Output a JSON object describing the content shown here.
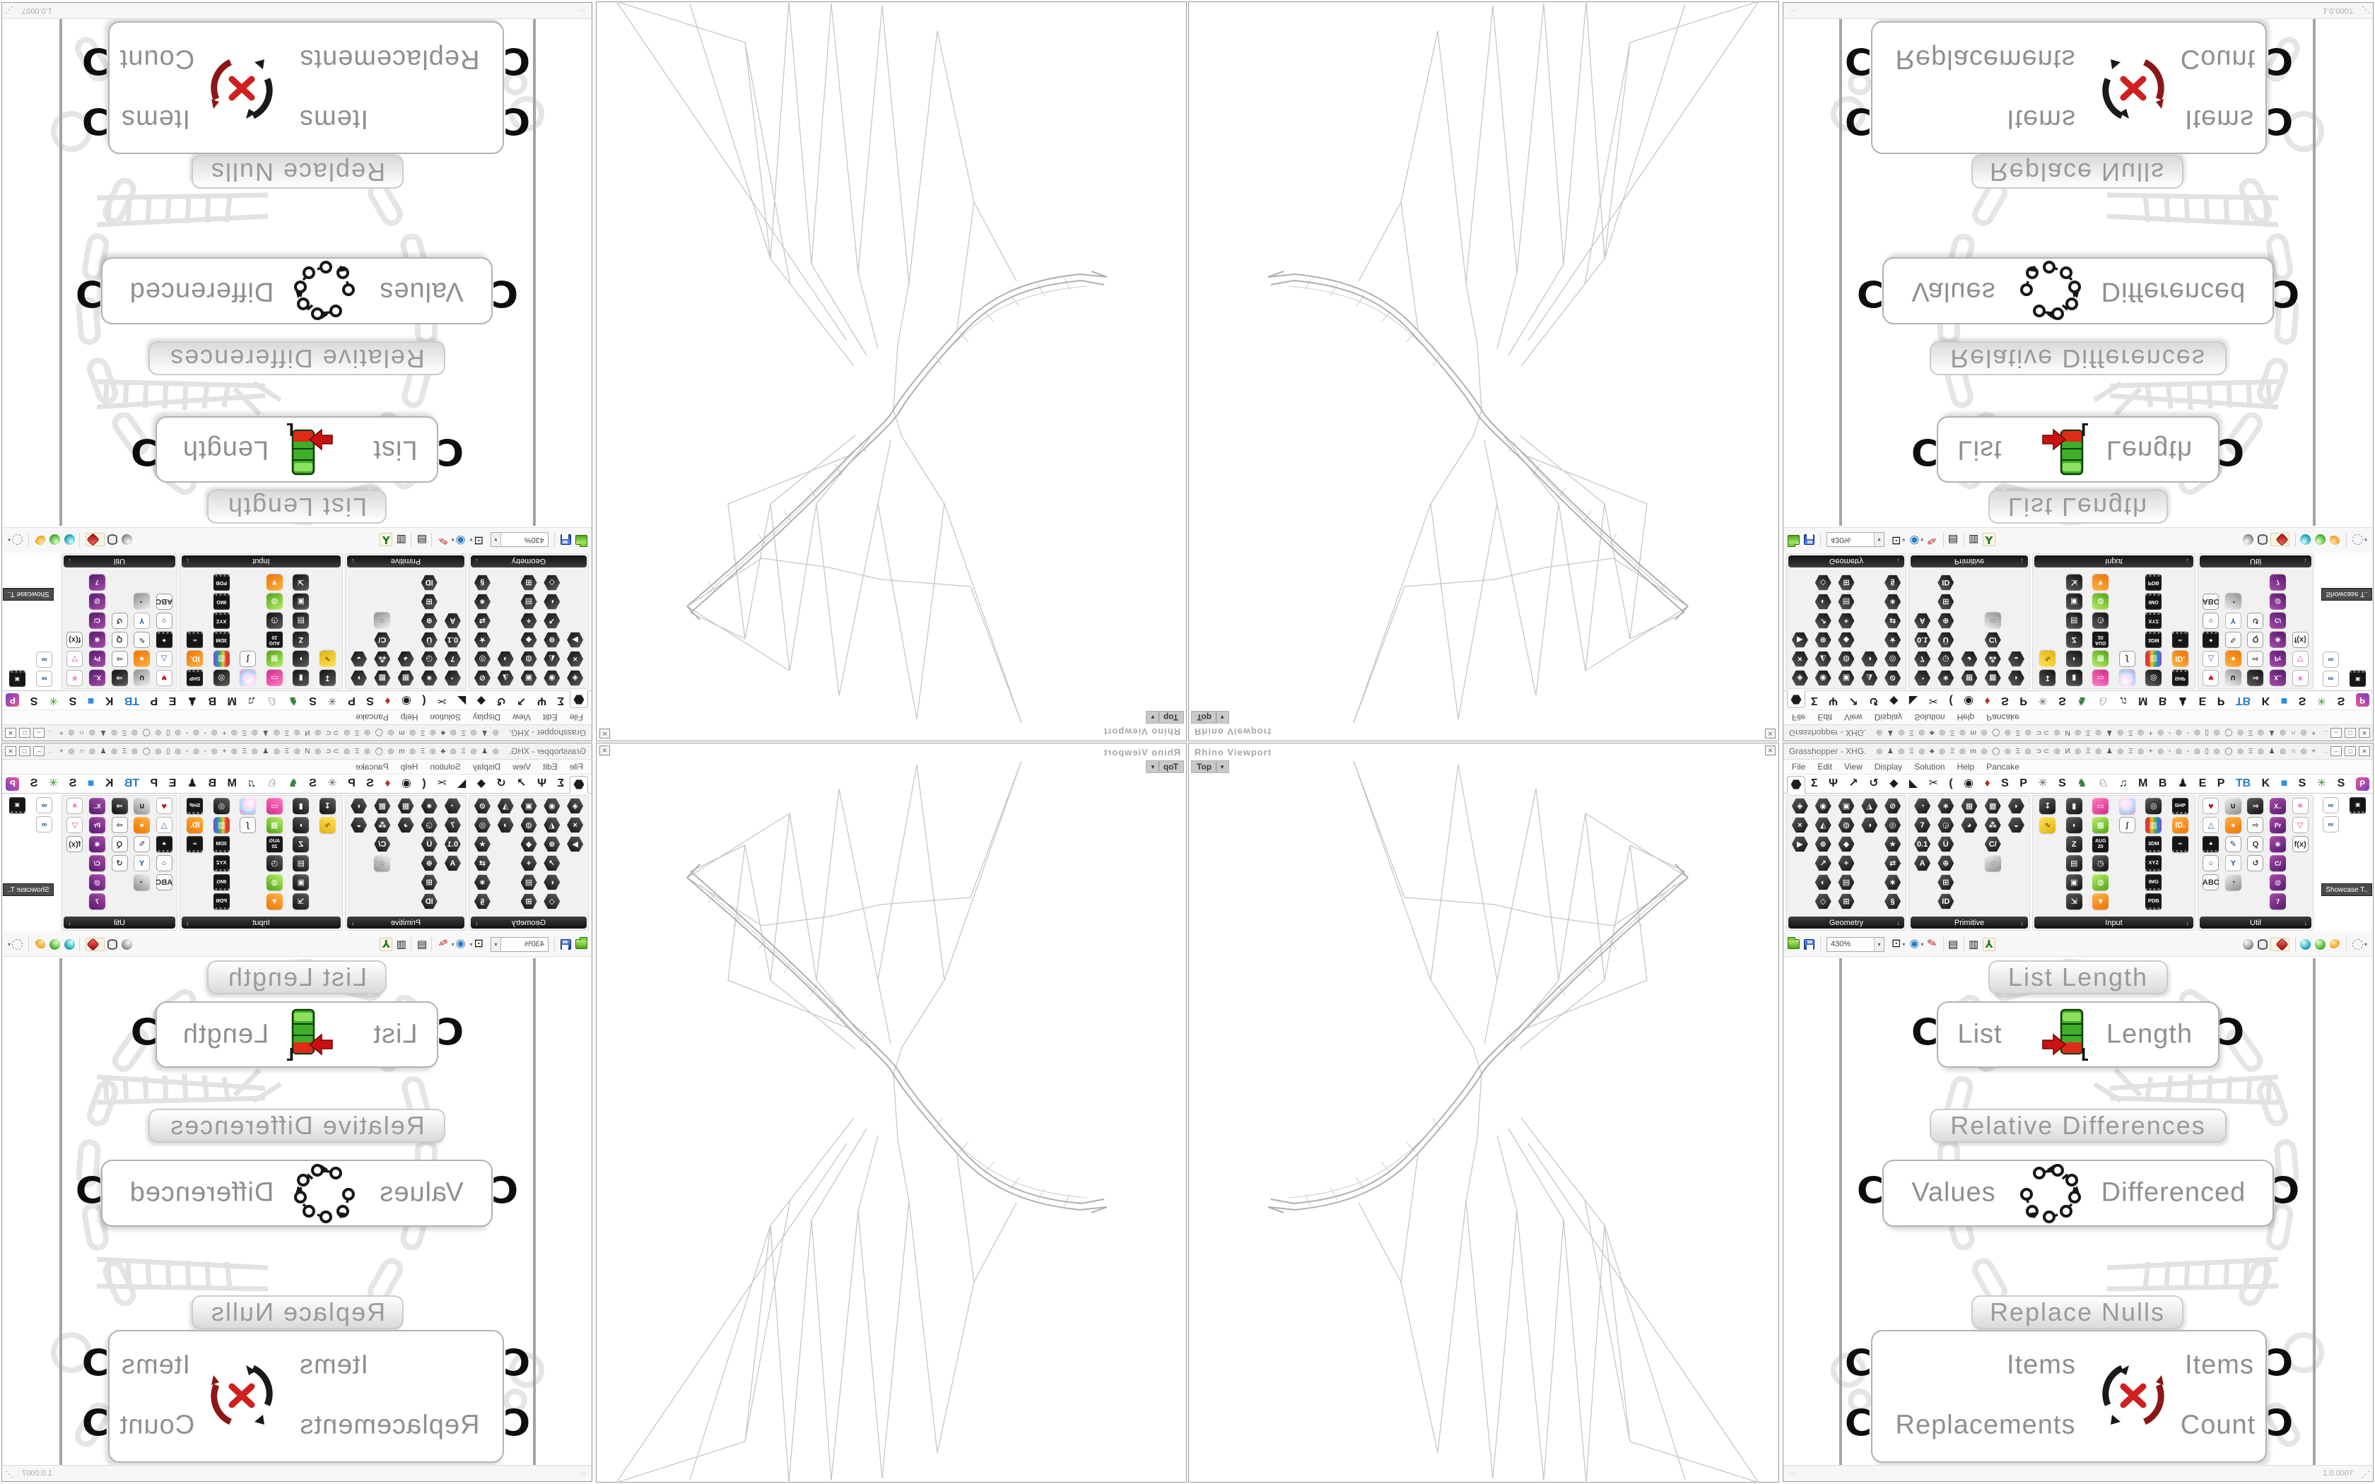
{
  "window": {
    "title": "Grasshopper - XHG.",
    "decor": "◎ ♟ ◎ Ξ ◎ ♣ ◎ Ξ ◎ m ◎ ◯ ◎ Ξ ◎ ⊃⊂ ◎ И ◎ Ξ ◎ ♟ ◎ Ξ ◎ + ◎ ◦ ◎ ◦ ◎ ▯ ◎ ◯ ◎ Ξ ◎ ♟ ◎ ∩ ◎ +",
    "dots": "..",
    "min": "–",
    "max": "□",
    "close": "✕"
  },
  "menu": {
    "items": [
      "File",
      "Edit",
      "View",
      "Display",
      "Solution",
      "Help",
      "Pancake"
    ]
  },
  "tabs": {
    "glyphs": [
      {
        "t": "Σ"
      },
      {
        "t": "Ψ"
      },
      {
        "t": "↗"
      },
      {
        "t": "↺"
      },
      {
        "t": "◆"
      },
      {
        "t": "◣"
      },
      {
        "t": "✂"
      },
      {
        "t": "("
      },
      {
        "t": "◉"
      },
      {
        "t": "♦",
        "c": "#b33122"
      },
      {
        "t": "S"
      },
      {
        "t": "P"
      },
      {
        "t": "✳",
        "c": "#666666"
      },
      {
        "t": "S"
      },
      {
        "t": "♞",
        "c": "#2e7d32"
      },
      {
        "t": "♘"
      },
      {
        "t": "♫"
      },
      {
        "t": "M"
      },
      {
        "t": "B"
      },
      {
        "t": "♟"
      },
      {
        "t": "E"
      },
      {
        "t": "P"
      },
      {
        "t": "TB",
        "c": "#2b7bc4"
      },
      {
        "t": "K"
      },
      {
        "t": "■",
        "c": "#2f8fe8"
      },
      {
        "t": "S"
      },
      {
        "t": "✳",
        "c": "#3a9a2a"
      },
      {
        "t": "S"
      },
      {
        "t": "P",
        "k": "pchip"
      }
    ]
  },
  "palette": {
    "bar_arrow": "↓",
    "tooltip": "Showcase T..",
    "panels": [
      {
        "label": "Geometry",
        "cols": 5,
        "icons": [
          [
            "◈",
            "hexa"
          ],
          [
            "◉",
            "hexa"
          ],
          [
            "▣",
            "hexa"
          ],
          [
            "◮",
            "hexa"
          ],
          [
            "⊘",
            "hexa"
          ],
          [
            "×",
            "hexa"
          ],
          [
            "◭",
            "hexa"
          ],
          [
            "◍",
            "hexa"
          ],
          [
            "◑",
            "hexa"
          ],
          [
            "◎",
            "hexa"
          ],
          [
            "▶",
            "hexa"
          ],
          [
            "⊛",
            "hexa"
          ],
          [
            "◆",
            "hexa"
          ],
          [
            ""
          ],
          [
            "★",
            "hexa"
          ],
          [
            ""
          ],
          [
            "↗",
            "hexa"
          ],
          [
            "+",
            "hexa"
          ],
          [
            ""
          ],
          [
            "⇄",
            "hexa"
          ],
          [
            ""
          ],
          [
            "◐",
            "hexa"
          ],
          [
            "▤",
            "hexa"
          ],
          [
            ""
          ],
          [
            "∗",
            "hexa"
          ],
          [
            ""
          ],
          [
            "◇",
            "hexa"
          ],
          [
            "⊞",
            "hexa"
          ],
          [
            ""
          ],
          [
            "§",
            "hexa"
          ]
        ]
      },
      {
        "label": "Primitive",
        "cols": 5,
        "icons": [
          [
            "◔",
            "hexa"
          ],
          [
            "∗",
            "hexa"
          ],
          [
            "▦",
            "hexa"
          ],
          [
            "▩",
            "hexa"
          ],
          [
            "◗",
            "hexa"
          ],
          [
            "7",
            "hexa"
          ],
          [
            "◶",
            "hexa"
          ],
          [
            "◕",
            "hexa"
          ],
          [
            "⁂",
            "hexa"
          ],
          [
            "◒",
            "hexa"
          ],
          [
            "0.1",
            "hexa"
          ],
          [
            "Ü",
            "hexa"
          ],
          [
            ""
          ],
          [
            "C/",
            "hexa"
          ],
          [
            ""
          ],
          [
            "A",
            "hexa"
          ],
          [
            "⊕",
            "hexa"
          ],
          [
            ""
          ],
          [
            "◌",
            "lt"
          ],
          [
            ""
          ],
          [
            ""
          ],
          [
            "⊞",
            "hexa"
          ],
          [
            ""
          ],
          [
            ""
          ],
          [
            ""
          ],
          [
            ""
          ],
          [
            "ID",
            "hexa"
          ],
          [
            ""
          ],
          [
            ""
          ],
          [
            ""
          ]
        ]
      },
      {
        "label": "Input",
        "cols": 6,
        "icons": [
          [
            "↧"
          ],
          [
            "▮"
          ],
          [
            "▭",
            "p"
          ],
          [
            "◯",
            "rs"
          ],
          [
            "◎"
          ],
          [
            "SHP",
            "c"
          ],
          [
            "∿",
            "y"
          ],
          [
            "◗"
          ],
          [
            "▦",
            "g"
          ],
          [
            "∫",
            "w"
          ],
          [
            "▥",
            "rb"
          ],
          [
            "ID.",
            "o"
          ],
          [
            ""
          ],
          [
            "Z"
          ],
          [
            "AUG 20",
            "cal"
          ],
          [
            ""
          ],
          [
            "3DM",
            "c"
          ],
          [
            "∞",
            "c"
          ],
          [
            ""
          ],
          [
            "▤"
          ],
          [
            "◷"
          ],
          [
            ""
          ],
          [
            "XYZ",
            "c"
          ],
          [
            ""
          ],
          [
            ""
          ],
          [
            "▣"
          ],
          [
            "◍",
            "g"
          ],
          [
            ""
          ],
          [
            "IMG",
            "c"
          ],
          [
            ""
          ],
          [
            ""
          ],
          [
            "⇲"
          ],
          [
            "▼",
            "o"
          ],
          [
            ""
          ],
          [
            "PDB",
            "c"
          ],
          [
            ""
          ]
        ]
      },
      {
        "label": "Util",
        "cols": 5,
        "icons": [
          [
            "♥",
            "wr"
          ],
          [
            "∪",
            "lt"
          ],
          [
            "⇒"
          ],
          [
            "X..",
            "m"
          ],
          [
            "✳",
            "wm"
          ],
          [
            "△",
            "wb"
          ],
          [
            "●",
            "o"
          ],
          [
            "⇨",
            "w"
          ],
          [
            "Pr",
            "m"
          ],
          [
            "▽",
            "wm"
          ],
          [
            "♣",
            "c"
          ],
          [
            "✎",
            "w"
          ],
          [
            "Q",
            "w"
          ],
          [
            "◉",
            "m"
          ],
          [
            "f(x)",
            "w"
          ],
          [
            "○",
            "w"
          ],
          [
            "Y",
            "wb"
          ],
          [
            "↺",
            "w"
          ],
          [
            "C/",
            "m"
          ],
          [
            ""
          ],
          [
            "ABC",
            "w"
          ],
          [
            "◔",
            "lt"
          ],
          [
            ""
          ],
          [
            "@",
            "m"
          ],
          [
            ""
          ],
          [
            ""
          ],
          [
            ""
          ],
          [
            ""
          ],
          [
            "7",
            "m"
          ],
          [
            ""
          ]
        ]
      },
      {
        "label": "",
        "cols": 2,
        "icons": [
          [
            "∞",
            "wb"
          ],
          [
            "▣",
            "c"
          ],
          [
            "∞",
            "wb"
          ],
          [
            ""
          ]
        ]
      }
    ]
  },
  "toolbar": {
    "zoom": "430%",
    "dd": "▾"
  },
  "viewport": {
    "title": "Rhino Viewport",
    "tab": "Top",
    "tab_arrow": "▼",
    "close": "✕"
  },
  "canvas": {
    "labels": [
      "List Length",
      "Relative Differences",
      "Replace Nulls"
    ],
    "components": [
      {
        "inputs": [
          "List"
        ],
        "outputs": [
          "Length"
        ]
      },
      {
        "inputs": [
          "Values"
        ],
        "outputs": [
          "Differenced"
        ]
      },
      {
        "inputs": [
          "Items",
          "Replacements"
        ],
        "outputs": [
          "Items",
          "Count"
        ]
      }
    ],
    "grip": "C",
    "status_left": "⋯",
    "status_version": "1.0.0007",
    "grip_dots": "⋰"
  },
  "colors": {
    "battery_green": "#3fae29",
    "battery_red": "#dd2b18",
    "arrow_red": "#cc1111",
    "icon_dark": "#262626",
    "wire_gray": "#c6c6c6",
    "rail_gray": "#b0b0b0",
    "watermark": "#e5e5e5"
  }
}
